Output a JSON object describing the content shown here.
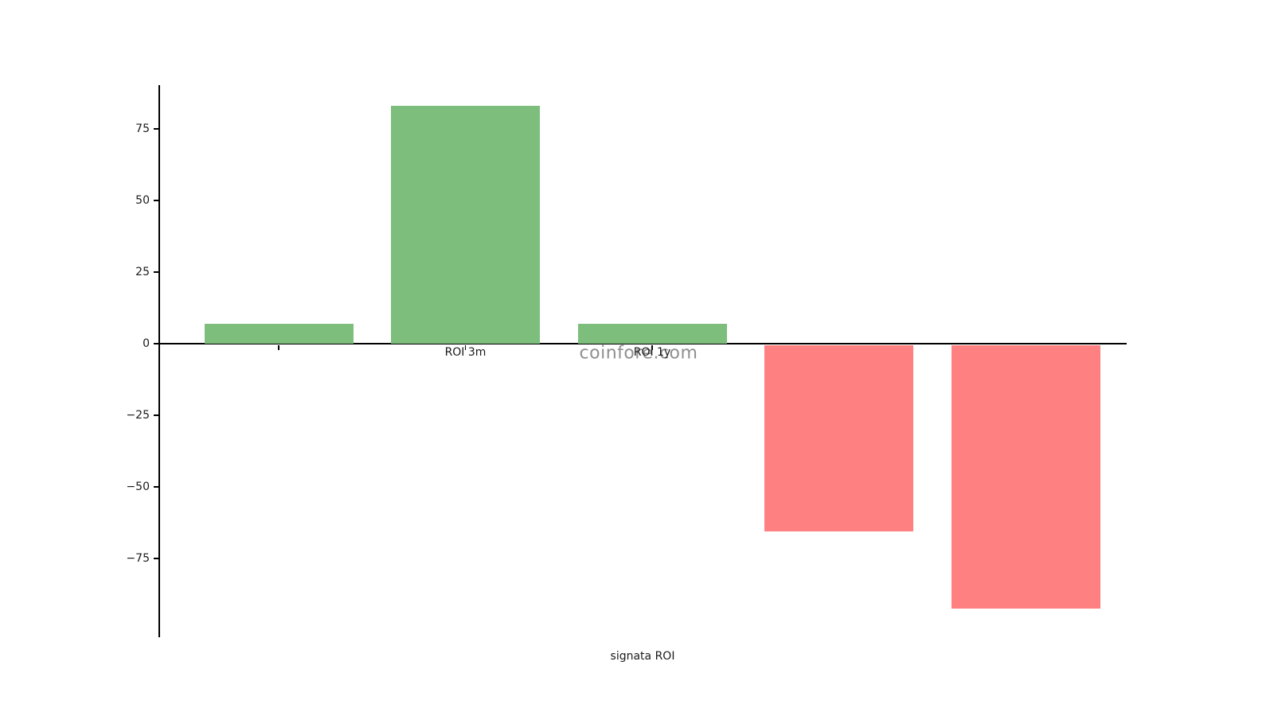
{
  "chart_data": {
    "type": "bar",
    "title": "",
    "xlabel": "signata ROI",
    "ylabel": "",
    "categories": [
      "",
      "ROI 3m",
      "ROI 1y",
      "",
      ""
    ],
    "values": [
      7,
      83,
      7,
      -65,
      -92
    ],
    "bar_colors": [
      "#7dbe7d",
      "#7dbe7d",
      "#7dbe7d",
      "#ff8080",
      "#ff8080"
    ],
    "positive_color": "#7dbe7d",
    "negative_color": "#ff8080",
    "ylim": [
      -102.5,
      90.3
    ],
    "yticks": [
      {
        "value": 75,
        "label": "75"
      },
      {
        "value": 50,
        "label": "50"
      },
      {
        "value": 25,
        "label": "25"
      },
      {
        "value": 0,
        "label": "0"
      },
      {
        "value": -25,
        "label": "−25"
      },
      {
        "value": -50,
        "label": "−50"
      },
      {
        "value": -75,
        "label": "−75"
      }
    ],
    "x_tick_dash_visible": [
      true,
      true,
      true,
      false,
      false
    ],
    "grid": false,
    "legend": null
  },
  "watermark": {
    "text": "coinfore.com",
    "color": "#8f8f8f"
  }
}
